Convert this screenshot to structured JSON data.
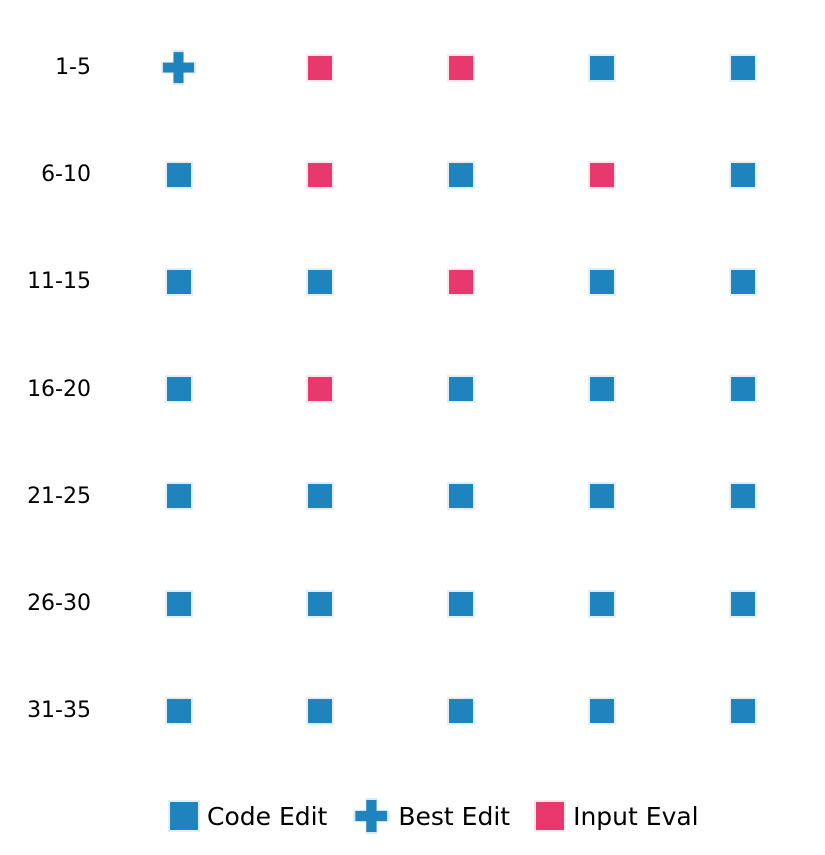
{
  "colors": {
    "code": "#1f84bd",
    "input": "#e8386e",
    "text": "#000000",
    "background": "#ffffff"
  },
  "chart_data": {
    "type": "scatter",
    "title": "",
    "xlabel": "",
    "ylabel": "",
    "grid_lines": false,
    "axes_visible": false,
    "y_categories": [
      "1-5",
      "6-10",
      "11-15",
      "16-20",
      "21-25",
      "26-30",
      "31-35"
    ],
    "x_values": [
      1,
      2,
      3,
      4,
      5
    ],
    "marker_meanings": {
      "code": "Code Edit (blue square)",
      "best": "Best Edit (blue plus)",
      "input": "Input Eval (pink square)"
    },
    "grid": {
      "rows": [
        {
          "label": "1-5",
          "markers": [
            "best",
            "input",
            "input",
            "code",
            "code"
          ]
        },
        {
          "label": "6-10",
          "markers": [
            "code",
            "input",
            "code",
            "input",
            "code"
          ]
        },
        {
          "label": "11-15",
          "markers": [
            "code",
            "code",
            "input",
            "code",
            "code"
          ]
        },
        {
          "label": "16-20",
          "markers": [
            "code",
            "input",
            "code",
            "code",
            "code"
          ]
        },
        {
          "label": "21-25",
          "markers": [
            "code",
            "code",
            "code",
            "code",
            "code"
          ]
        },
        {
          "label": "26-30",
          "markers": [
            "code",
            "code",
            "code",
            "code",
            "code"
          ]
        },
        {
          "label": "31-35",
          "markers": [
            "code",
            "code",
            "code",
            "code",
            "code"
          ]
        }
      ]
    },
    "legend": {
      "position": "bottom center",
      "items": [
        {
          "label": "Code Edit",
          "type": "code"
        },
        {
          "label": "Best Edit",
          "type": "best"
        },
        {
          "label": "Input Eval",
          "type": "input"
        }
      ]
    }
  }
}
